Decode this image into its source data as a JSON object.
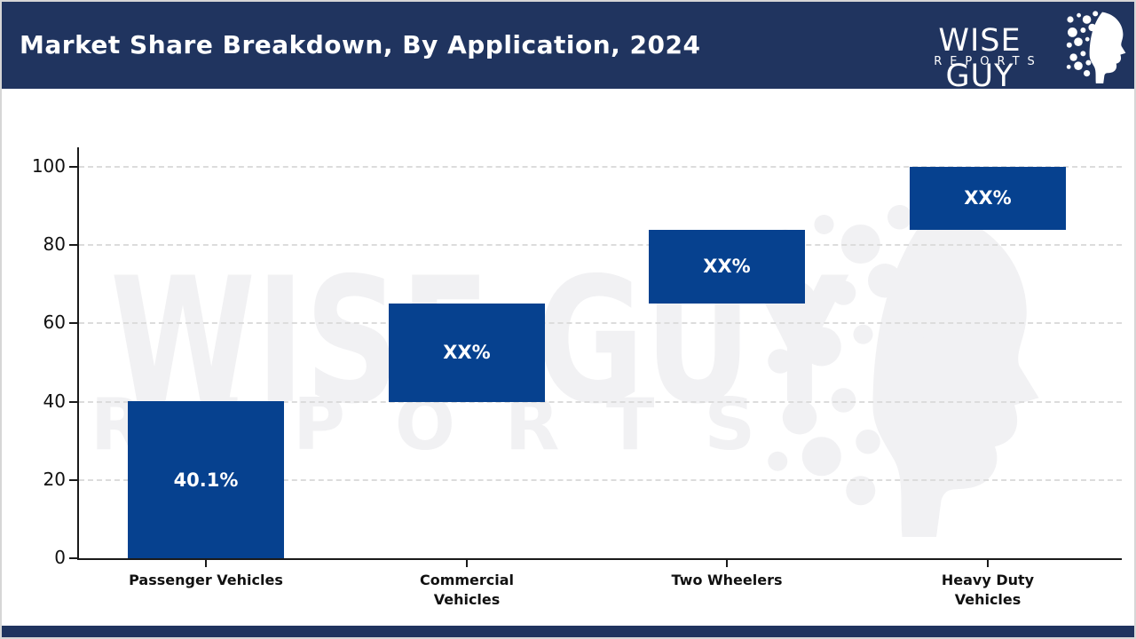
{
  "header": {
    "title": "Market Share Breakdown, By Application, 2024",
    "bg_color": "#20345f",
    "logo": {
      "line1": "WISE GUY",
      "line2": "REPORTS"
    }
  },
  "watermark": {
    "line1": "WISE GUY",
    "line2": "REPORTS"
  },
  "chart_data": {
    "type": "bar",
    "subtype": "floating-waterfall",
    "title": "Market Share Breakdown, By Application, 2024",
    "categories": [
      "Passenger Vehicles",
      "Commercial Vehicles",
      "Two Wheelers",
      "Heavy Duty Vehicles"
    ],
    "category_lines": [
      [
        "Passenger Vehicles"
      ],
      [
        "Commercial",
        "Vehicles"
      ],
      [
        "Two Wheelers"
      ],
      [
        "Heavy Duty",
        "Vehicles"
      ]
    ],
    "segments": [
      {
        "start": 0,
        "end": 40.1,
        "label": "40.1%"
      },
      {
        "start": 40,
        "end": 65,
        "label": "XX%"
      },
      {
        "start": 65,
        "end": 84,
        "label": "XX%"
      },
      {
        "start": 84,
        "end": 100,
        "label": "XX%"
      }
    ],
    "yticks": [
      0,
      20,
      40,
      60,
      80,
      100
    ],
    "ylim": [
      0,
      105
    ],
    "grid": "horizontal-dashed",
    "legend": null,
    "bar_color": "#06418f",
    "grid_color": "#dcdcdc",
    "axis_color": "#1a1a1a"
  }
}
